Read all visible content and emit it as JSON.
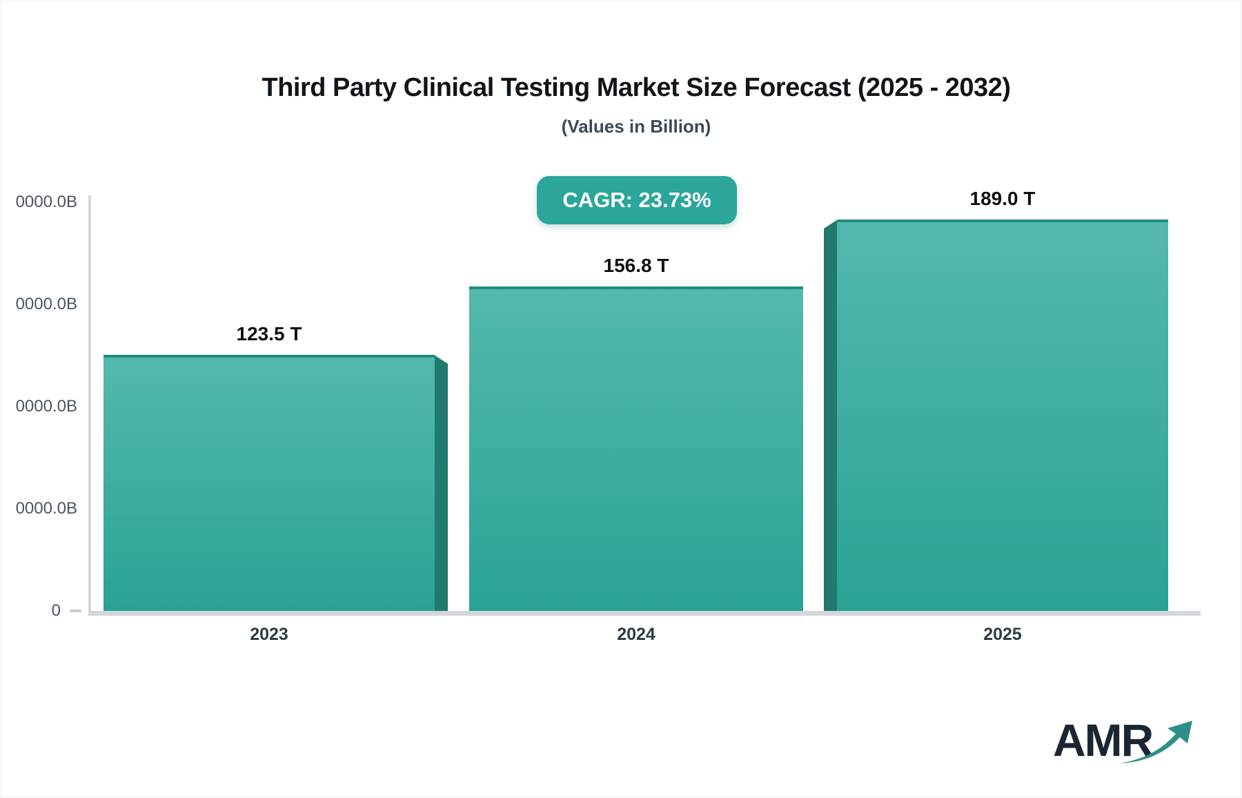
{
  "header": {
    "title": "Third Party Clinical Testing Market Size Forecast (2025 - 2032)",
    "subtitle": "(Values in Billion)",
    "cagr_badge": "CAGR: 23.73%"
  },
  "chart_data": {
    "type": "bar",
    "title": "Third Party Clinical Testing Market Size Forecast (2025 - 2032)",
    "subtitle": "(Values in Billion)",
    "cagr": "CAGR: 23.73%",
    "categories": [
      "2023",
      "2024",
      "2025"
    ],
    "values": [
      123.5,
      156.8,
      189.0
    ],
    "value_labels": [
      "123.5 T",
      "156.8 T",
      "189.0 T"
    ],
    "unit_suffix": "T",
    "y_axis_visible_tick_labels": [
      "0000.0B",
      "0000.0B",
      "0000.0B",
      "0000.0B",
      "0"
    ],
    "ylim_estimate": [
      0,
      200
    ],
    "grid": "off",
    "legend": "none",
    "colors": {
      "bar_face_top": "#54b9ac",
      "bar_face_bottom": "#2aa295",
      "bar_top_edge": "#1e8c80",
      "bar_side_3d": "#207a6e",
      "accent_badge": "#2ca59a",
      "axis": "#d3d7dd",
      "tick_text": "#4a5663",
      "category_text": "#2e3a46",
      "title_text": "#10151b"
    }
  },
  "footer": {
    "brand": "AMR"
  }
}
